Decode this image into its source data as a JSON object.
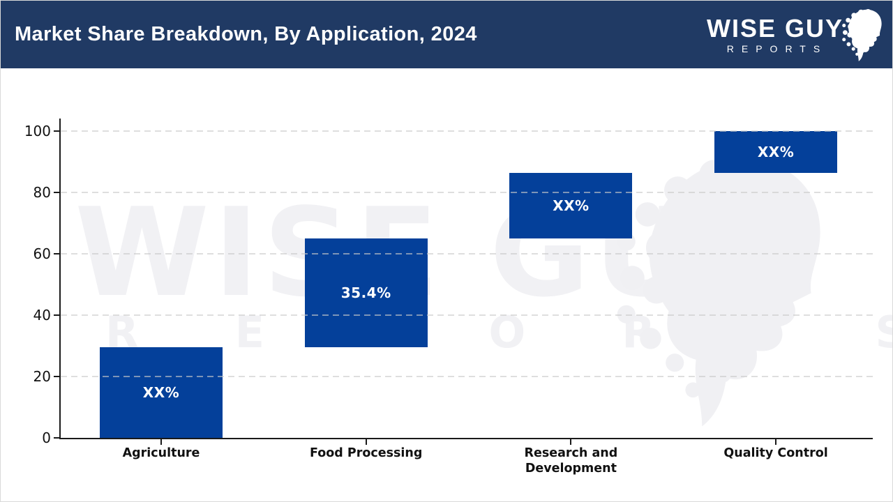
{
  "header": {
    "title": "Market Share Breakdown, By Application, 2024",
    "logo": {
      "line1": "WISE GUY",
      "line2": "REPORTS"
    },
    "bg_color": "#203a64"
  },
  "watermark": {
    "line1": "WISE GUY",
    "line2": "REPORTS"
  },
  "chart_data": {
    "type": "bar",
    "subtype": "waterfall",
    "title": "Market Share Breakdown, By Application, 2024",
    "categories": [
      "Agriculture",
      "Food Processing",
      "Research and Development",
      "Quality Control"
    ],
    "segments": [
      {
        "category": "Agriculture",
        "start": 0,
        "end": 29.5,
        "label": "XX%"
      },
      {
        "category": "Food Processing",
        "start": 29.5,
        "end": 64.9,
        "label": "35.4%"
      },
      {
        "category": "Research and Development",
        "start": 64.9,
        "end": 86.4,
        "label": "XX%"
      },
      {
        "category": "Quality Control",
        "start": 86.4,
        "end": 100,
        "label": "XX%"
      }
    ],
    "yticks": [
      0,
      20,
      40,
      60,
      80,
      100
    ],
    "ylim": [
      0,
      104
    ],
    "bar_color": "#04409a",
    "grid": "dashed-horizontal",
    "legend": null
  }
}
